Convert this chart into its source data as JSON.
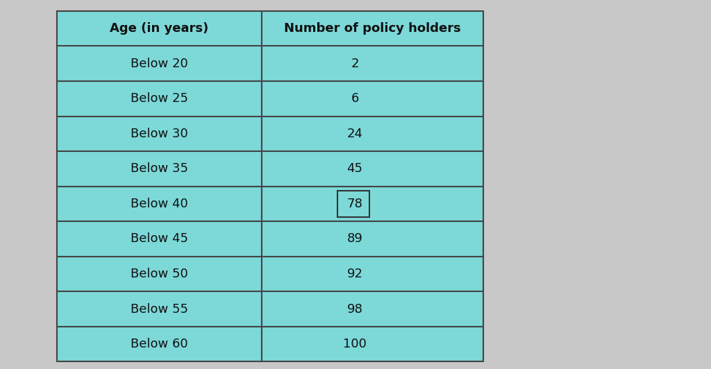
{
  "col1_header": "Age (in years)",
  "col2_header": "Number of policy holders",
  "rows": [
    [
      "Below 20",
      "2"
    ],
    [
      "Below 25",
      "6"
    ],
    [
      "Below 30",
      "24"
    ],
    [
      "Below 35",
      "45"
    ],
    [
      "Below 40",
      "78"
    ],
    [
      "Below 45",
      "89"
    ],
    [
      "Below 50",
      "92"
    ],
    [
      "Below 55",
      "98"
    ],
    [
      "Below 60",
      "100"
    ]
  ],
  "table_bg_color": "#7dd8d8",
  "header_bg_color": "#7dd8d8",
  "border_color": "#444444",
  "text_color": "#111111",
  "header_fontsize": 13,
  "cell_fontsize": 13,
  "highlight_row_index": 4,
  "highlight_box_color": "#333333",
  "fig_bg_color": "#c8c8c8"
}
